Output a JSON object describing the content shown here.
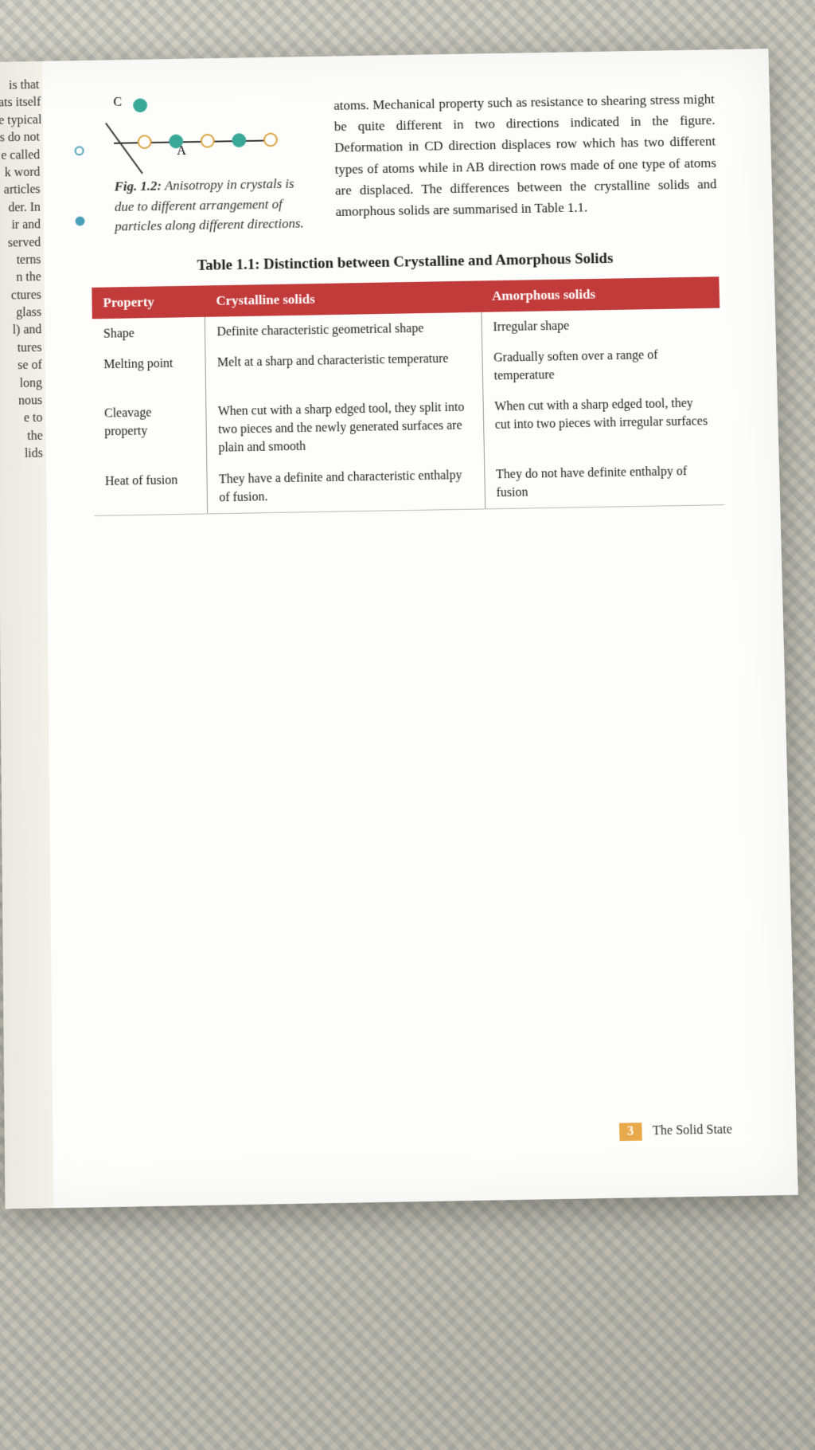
{
  "margin_fragments": [
    "is that",
    "ats itself",
    "e typical",
    "s do not",
    "e called",
    "k word",
    "articles",
    "der. In",
    "ir and",
    "served",
    "terns",
    "n the",
    "ctures",
    "glass",
    "l) and",
    "tures",
    "se of",
    "long",
    "nous",
    "e to",
    "the",
    "lids"
  ],
  "diagram": {
    "label_C": "C",
    "label_A": "A",
    "atom_fill": "#3aa896",
    "atom_fill2": "#d8a038",
    "atom_border": "#333333"
  },
  "fig_caption": {
    "prefix": "Fig. 1.2:",
    "text": "Anisotropy in crystals is due to different arrangement of particles along different directions."
  },
  "paragraph": "atoms. Mechanical property such as resistance to shearing stress might be quite different in two directions indicated in the figure. Deformation in CD direction displaces row which has two different types of atoms while in AB direction rows made of one type of atoms are displaced. The differences between the crystalline solids and amorphous solids are summarised in Table 1.1.",
  "table_title": "Table 1.1: Distinction between Crystalline and Amorphous Solids",
  "table": {
    "header_bg": "#c23b3b",
    "headers": [
      "Property",
      "Crystalline solids",
      "Amorphous solids"
    ],
    "col_widths": [
      "18%",
      "44%",
      "38%"
    ],
    "rows": [
      [
        "Shape",
        "Definite characteristic geometrical shape",
        "Irregular shape"
      ],
      [
        "Melting point",
        "Melt at a sharp and characteristic temperature",
        "Gradually soften over a range of temperature"
      ],
      [
        "Cleavage property",
        "When cut with a sharp edged tool, they split into two pieces and the newly generated surfaces are plain and smooth",
        "When cut with a sharp edged tool, they cut into two pieces with irregular surfaces"
      ],
      [
        "Heat of fusion",
        "They have a definite and characteristic enthalpy of fusion.",
        "They do not have definite enthalpy of fusion"
      ]
    ]
  },
  "footer": {
    "page_num": "3",
    "chapter": "The Solid State",
    "accent": "#e8a94a"
  }
}
